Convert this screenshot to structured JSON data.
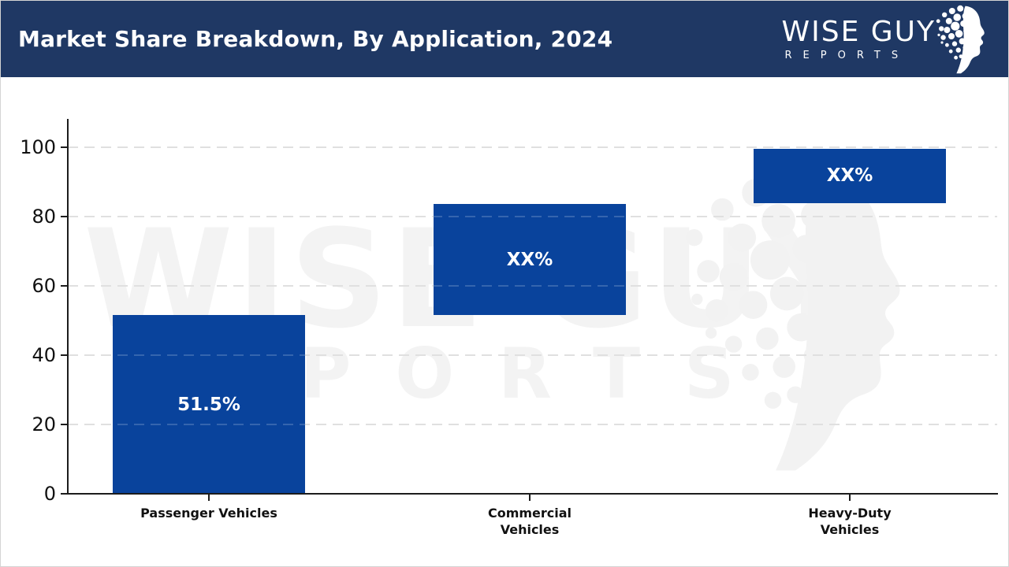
{
  "header": {
    "title": "Market Share Breakdown, By Application, 2024",
    "logo": {
      "brand_line1": "WISE GUY",
      "brand_line2": "REPORTS"
    }
  },
  "watermark": {
    "line1": "WISE GUY",
    "line2": "REPORTS"
  },
  "chart_data": {
    "type": "bar",
    "subtype": "floating-waterfall",
    "title": "Market Share Breakdown, By Application, 2024",
    "categories": [
      "Passenger Vehicles",
      "Commercial\nVehicles",
      "Heavy-Duty\nVehicles"
    ],
    "bars": [
      {
        "category": "Passenger Vehicles",
        "start": 0,
        "end": 51.5,
        "label": "51.5%"
      },
      {
        "category": "Commercial\nVehicles",
        "start": 51.5,
        "end": 83.6,
        "label": "XX%"
      },
      {
        "category": "Heavy-Duty\nVehicles",
        "start": 83.9,
        "end": 99.6,
        "label": "XX%"
      }
    ],
    "ylim": [
      0,
      100
    ],
    "yticks": [
      0,
      20,
      40,
      60,
      80,
      100
    ],
    "grid": true,
    "legend": false,
    "bar_color": "#09439c",
    "xlabel": "",
    "ylabel": ""
  },
  "colors": {
    "header_bg": "#1f3864",
    "bar_blue": "#09439c",
    "gridline": "#d9d9d9",
    "axis": "#1c1c1c",
    "watermark": "#f3f3f3",
    "page_border": "#d4d4d4"
  }
}
